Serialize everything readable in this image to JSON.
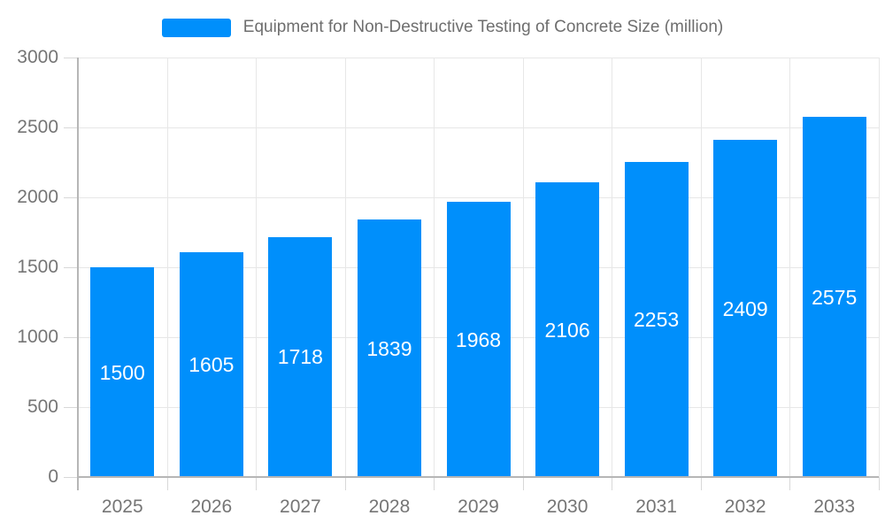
{
  "chart_data": {
    "type": "bar",
    "title": "Equipment for Non-Destructive Testing of Concrete Size (million)",
    "legend_position": "top",
    "grid": true,
    "categories": [
      "2025",
      "2026",
      "2027",
      "2028",
      "2029",
      "2030",
      "2031",
      "2032",
      "2033"
    ],
    "values": [
      1500,
      1605,
      1718,
      1839,
      1968,
      2106,
      2253,
      2409,
      2575
    ],
    "series": [
      {
        "name": "Equipment for Non-Destructive Testing of Concrete Size (million)",
        "values": [
          1500,
          1605,
          1718,
          1839,
          1968,
          2106,
          2253,
          2409,
          2575
        ]
      }
    ],
    "xlabel": "",
    "ylabel": "",
    "ylim": [
      0,
      3000
    ],
    "yticks": [
      0,
      500,
      1000,
      1500,
      2000,
      2500,
      3000
    ],
    "colors": {
      "bar": "#008FFB",
      "bar_label": "#FFFFFF",
      "axis_label": "#757575",
      "legend_text": "#6E6E6E",
      "gridline": "#E7E7E7",
      "tick": "#D8D8D8",
      "axis_line": "#B6B6B6"
    }
  }
}
